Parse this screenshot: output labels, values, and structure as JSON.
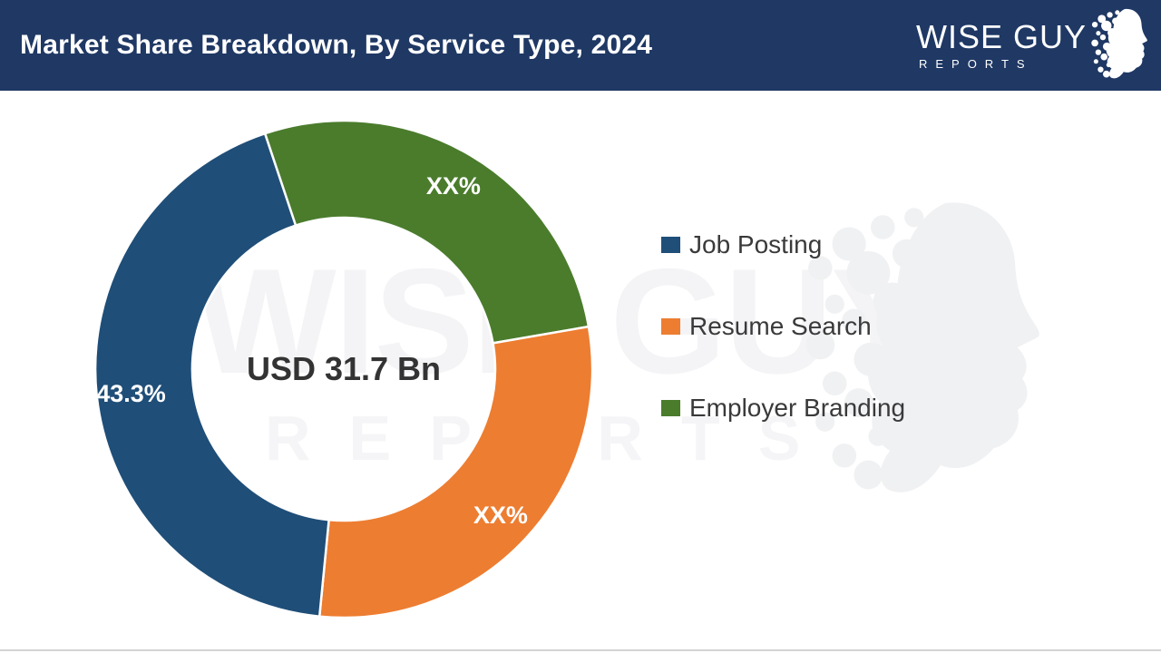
{
  "header": {
    "title": "Market Share Breakdown, By Service Type, 2024",
    "bg_color": "#1F3864",
    "logo": {
      "line1": "WISE GUY",
      "line2": "REPORTS"
    }
  },
  "watermark": {
    "line1": "WISE GUY",
    "line2": "REPORTS"
  },
  "chart_data": {
    "type": "donut",
    "title": "Market Share Breakdown, By Service Type, 2024",
    "center_label": "USD 31.7 Bn",
    "start_angle_deg": -18.5,
    "outer_radius": 274,
    "inner_radius": 167,
    "label_radius": 236,
    "segments": [
      {
        "name": "Employer Branding",
        "slug": "employer-branding",
        "color": "#4A7C2C",
        "pct": 27.4,
        "label": "XX%"
      },
      {
        "name": "Resume Search",
        "slug": "resume-search",
        "color": "#ED7D31",
        "pct": 29.3,
        "label": "XX%"
      },
      {
        "name": "Job Posting",
        "slug": "job-posting",
        "color": "#1F4E78",
        "pct": 43.3,
        "label": "43.3%"
      }
    ],
    "legend": [
      {
        "label": "Job Posting",
        "color": "#1F4E78"
      },
      {
        "label": "Resume Search",
        "color": "#ED7D31"
      },
      {
        "label": "Employer Branding",
        "color": "#4A7C2C"
      }
    ]
  }
}
